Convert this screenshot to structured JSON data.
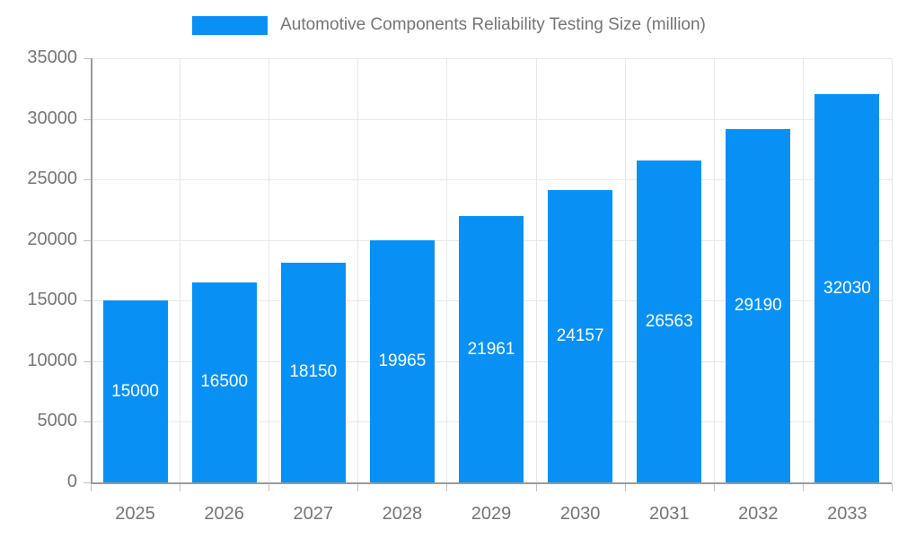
{
  "legend": {
    "label": "Automotive Components Reliability Testing Size (million)"
  },
  "chart_data": {
    "type": "bar",
    "title": "Automotive Components Reliability Testing Size (million)",
    "categories": [
      "2025",
      "2026",
      "2027",
      "2028",
      "2029",
      "2030",
      "2031",
      "2032",
      "2033"
    ],
    "values": [
      15000,
      16500,
      18150,
      19965,
      21961,
      24157,
      26563,
      29190,
      32030
    ],
    "xlabel": "",
    "ylabel": "",
    "ylim": [
      0,
      35000
    ],
    "yticks": [
      0,
      5000,
      10000,
      15000,
      20000,
      25000,
      30000,
      35000
    ],
    "grid": true,
    "legend_position": "top-center",
    "value_labels": "inside-center"
  },
  "colors": {
    "bar": "#0890f5",
    "value_label": "#ffffff",
    "axis_text": "#757575",
    "axis_line": "#9a9a9a",
    "grid_line": "#e8e8e8",
    "tick": "#c2c2c2",
    "background": "#ffffff"
  }
}
